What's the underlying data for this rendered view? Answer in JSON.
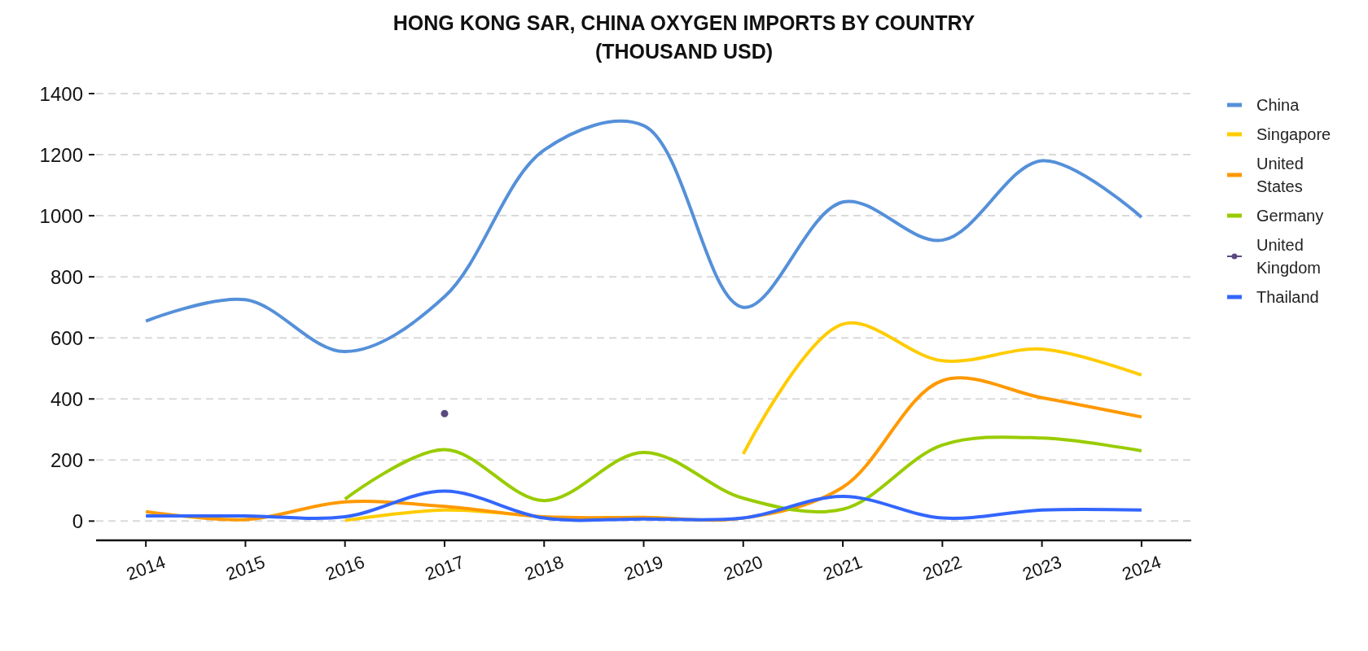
{
  "chart_data": {
    "type": "line",
    "title": "HONG KONG SAR, CHINA OXYGEN IMPORTS BY COUNTRY\n(THOUSAND USD)",
    "x": [
      2014,
      2015,
      2016,
      2017,
      2018,
      2019,
      2020,
      2021,
      2022,
      2023,
      2024
    ],
    "xlim": [
      2013.5,
      2024.5
    ],
    "xticks": [
      2014,
      2015,
      2016,
      2017,
      2018,
      2019,
      2020,
      2021,
      2022,
      2023,
      2024
    ],
    "ylim": [
      -63,
      1400
    ],
    "yticks": [
      0,
      200,
      400,
      600,
      800,
      1000,
      1200,
      1400
    ],
    "grid": "y",
    "legend": "right",
    "series": [
      {
        "name": "China",
        "color": "#5590d9",
        "values": [
          655,
          725,
          555,
          735,
          1215,
          1295,
          700,
          1045,
          920,
          1180,
          995
        ]
      },
      {
        "name": "Singapore",
        "color": "#ffcc00",
        "values": [
          null,
          null,
          2,
          36,
          12,
          null,
          220,
          645,
          525,
          563,
          478
        ]
      },
      {
        "name": "United States",
        "color": "#ff9900",
        "values": [
          31,
          5,
          63,
          48,
          14,
          12,
          10,
          111,
          460,
          404,
          341
        ]
      },
      {
        "name": "Germany",
        "color": "#99cc00",
        "values": [
          null,
          null,
          72,
          234,
          67,
          225,
          75,
          39,
          249,
          272,
          230
        ]
      },
      {
        "name": "United Kingdom",
        "color": "#5b4a7f",
        "marker": "circle",
        "values": [
          null,
          null,
          null,
          352,
          null,
          null,
          null,
          null,
          null,
          null,
          null
        ]
      },
      {
        "name": "Thailand",
        "color": "#3366ff",
        "values": [
          17,
          17,
          14,
          98,
          10,
          7,
          10,
          81,
          10,
          36,
          36
        ]
      }
    ]
  }
}
